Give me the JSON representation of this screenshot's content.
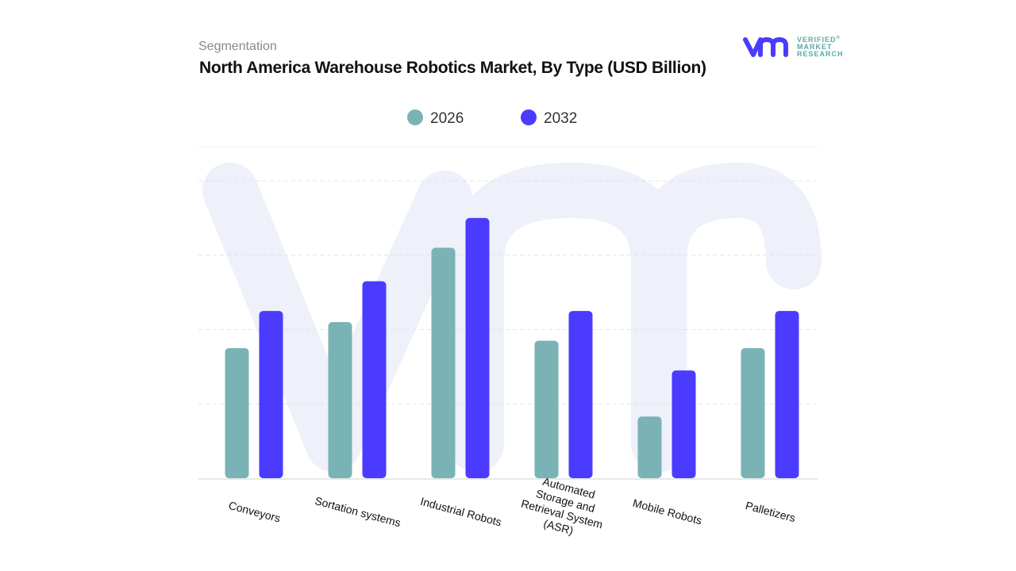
{
  "header": {
    "segment_label": "Segmentation",
    "title": "North America Warehouse Robotics Market, By Type (USD Billion)"
  },
  "logo": {
    "text_lines": [
      "VERIFIED",
      "MARKET",
      "RESEARCH"
    ]
  },
  "chart_data": {
    "type": "bar",
    "title": "North America Warehouse Robotics Market, By Type (USD Billion)",
    "categories": [
      "Conveyors",
      "Sortation systems",
      "Industrial Robots",
      "Automated Storage and Retrieval System (ASR)",
      "Mobile Robots",
      "Palletizers"
    ],
    "category_label_lines": [
      [
        "Conveyors"
      ],
      [
        "Sortation systems"
      ],
      [
        "Industrial Robots"
      ],
      [
        "Automated",
        "Storage and",
        "Retrieval System",
        "(ASR)"
      ],
      [
        "Mobile Robots"
      ],
      [
        "Palletizers"
      ]
    ],
    "series": [
      {
        "name": "2026",
        "color": "#7ab3b5",
        "values": [
          1.75,
          2.1,
          3.1,
          1.85,
          0.83,
          1.75
        ]
      },
      {
        "name": "2032",
        "color": "#4b3bff",
        "values": [
          2.25,
          2.65,
          3.5,
          2.25,
          1.45,
          2.25
        ]
      }
    ],
    "ylim": [
      0,
      4
    ],
    "grid": true,
    "legend": "top-center",
    "xlabel": "",
    "ylabel": ""
  }
}
